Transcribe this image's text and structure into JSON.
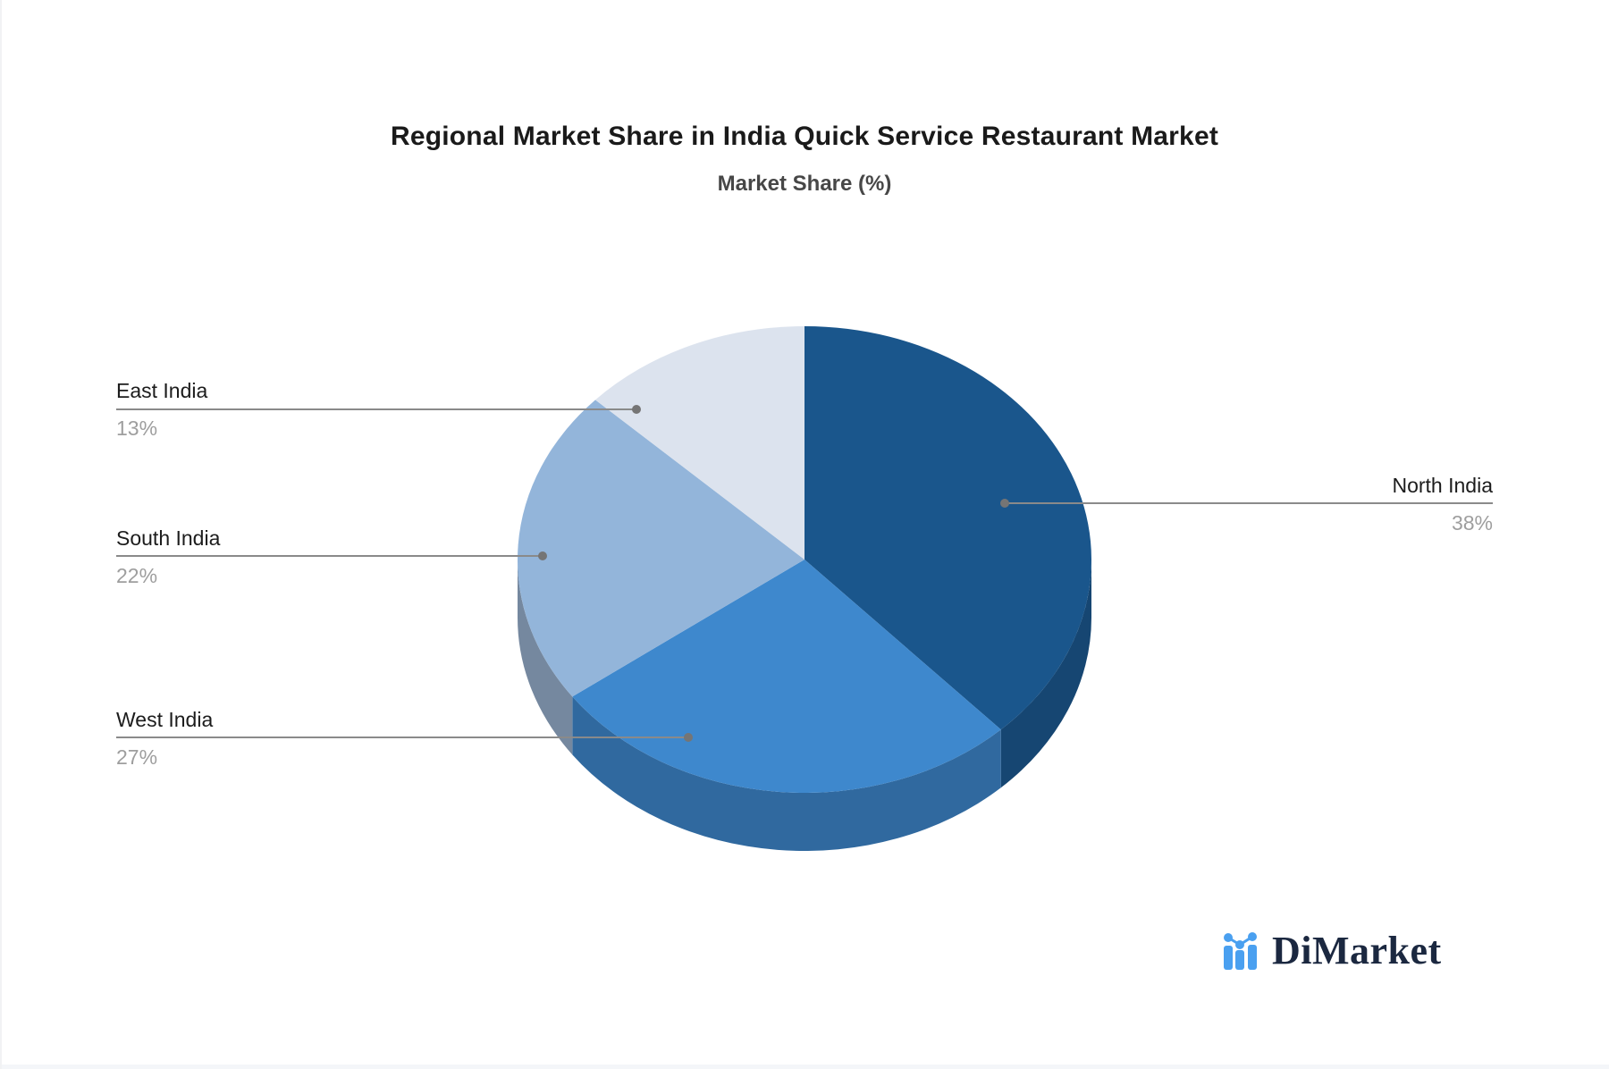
{
  "header": {
    "title": "Regional Market Share in India Quick Service Restaurant Market",
    "subtitle": "Market Share (%)"
  },
  "chart_data": {
    "type": "pie",
    "style": "3d",
    "title": "Regional Market Share in India Quick Service Restaurant Market",
    "subtitle": "Market Share (%)",
    "unit": "%",
    "direction": "clockwise",
    "start_angle": "12-oclock",
    "legend_position": "callout-labels",
    "slices": [
      {
        "label": "North India",
        "value": 38,
        "color": "#1A568C",
        "side_color": "#164672"
      },
      {
        "label": "West India",
        "value": 27,
        "color": "#3E88CD",
        "side_color": "#30699F"
      },
      {
        "label": "South India",
        "value": 22,
        "color": "#93B5DA",
        "side_color": "#75889F"
      },
      {
        "label": "East India",
        "value": 13,
        "color": "#DCE3EE",
        "side_color": "#B9C2D2"
      }
    ]
  },
  "callouts": {
    "north": {
      "label": "North India",
      "value": "38%"
    },
    "west": {
      "label": "West India",
      "value": "27%"
    },
    "south": {
      "label": "South India",
      "value": "22%"
    },
    "east": {
      "label": "East India",
      "value": "13%"
    }
  },
  "logo": {
    "text": "DiMarket",
    "icon": "bar-chart-logo-icon",
    "icon_color": "#4AA0F0",
    "text_color": "#1B2840"
  },
  "colors": {
    "background": "#FFFFFF",
    "title_text": "#1A1A1A",
    "subtitle_text": "#474747",
    "label_text": "#1C1C1C",
    "percent_text": "#9E9E9E",
    "leader_line": "#8A8A8A",
    "leader_dot": "#757575"
  }
}
